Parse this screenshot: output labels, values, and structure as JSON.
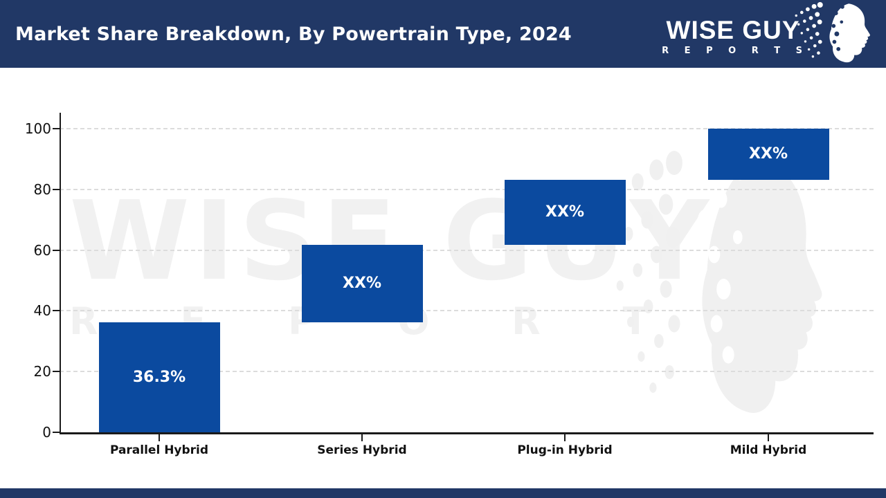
{
  "header": {
    "title": "Market Share Breakdown, By Powertrain Type, 2024",
    "bg_color": "#213866",
    "logo": {
      "line1": "WISE GUY",
      "line2": "R E P O R T S"
    }
  },
  "watermark": {
    "line1": "WISE GUY",
    "line2": "R E P O R T S"
  },
  "footer": {
    "bg_color": "#213866"
  },
  "chart_data": {
    "type": "bar",
    "subtype": "waterfall",
    "title": "Market Share Breakdown, By Powertrain Type, 2024",
    "categories": [
      "Parallel Hybrid",
      "Series Hybrid",
      "Plug-in Hybrid",
      "Mild Hybrid"
    ],
    "segments": [
      {
        "category": "Parallel Hybrid",
        "start": 0,
        "end": 36.3,
        "label": "36.3%"
      },
      {
        "category": "Series Hybrid",
        "start": 36.3,
        "end": 61.8,
        "label": "XX%"
      },
      {
        "category": "Plug-in Hybrid",
        "start": 61.8,
        "end": 83.2,
        "label": "XX%"
      },
      {
        "category": "Mild Hybrid",
        "start": 83.2,
        "end": 100,
        "label": "XX%"
      }
    ],
    "y_ticks": [
      0,
      20,
      40,
      60,
      80,
      100
    ],
    "ylim": [
      0,
      105
    ],
    "xlabel": "",
    "ylabel": "",
    "grid": "horizontal-dashed",
    "legend": "none",
    "bar_color": "#0b4a9f",
    "value_label_color": "#ffffff",
    "axis_color": "#1a1a1a",
    "gridline_color": "#dcdcdc"
  }
}
